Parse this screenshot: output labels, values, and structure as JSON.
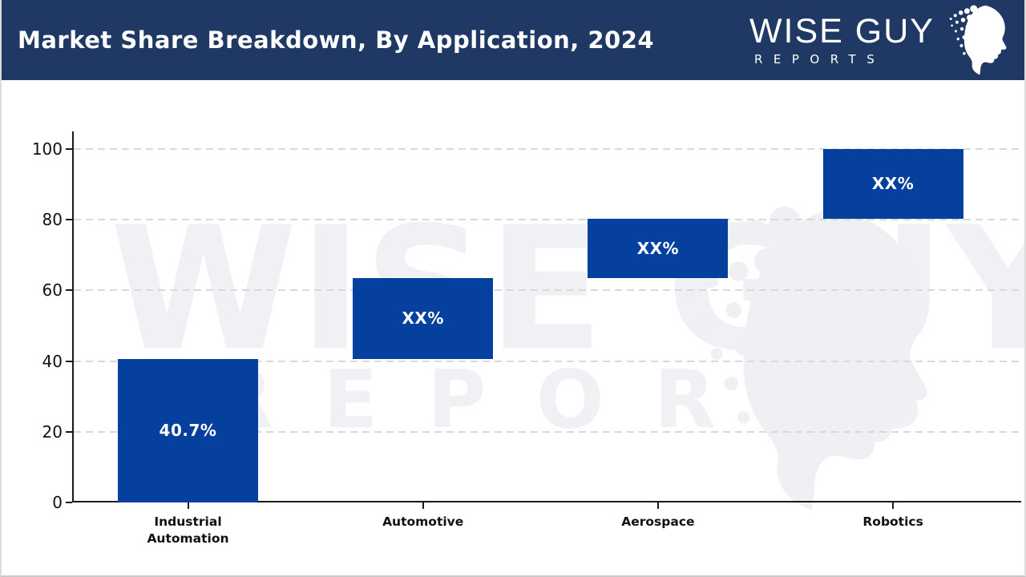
{
  "header": {
    "title": "Market Share Breakdown, By Application, 2024",
    "logo": {
      "wordmark": "WISE GUY",
      "subtext": "REPORTS"
    }
  },
  "watermark": {
    "wordmark": "WISE GUY",
    "subtext": "REPORTS"
  },
  "colors": {
    "header_bg": "#1f3864",
    "bar_fill": "#05409e",
    "bar_label_text": "#ffffff",
    "gridline": "#d9d9d9",
    "axis": "#1a1a1a",
    "watermark_text": "#f0f1f4",
    "watermark_head": "#eef0f3",
    "title_text": "#ffffff"
  },
  "chart_data": {
    "type": "bar",
    "subtype": "floating-breakdown-waterfall",
    "title": "Market Share Breakdown, By Application, 2024",
    "categories": [
      "Industrial\nAutomation",
      "Automotive",
      "Aerospace",
      "Robotics"
    ],
    "segments": [
      {
        "category": "Industrial Automation",
        "start": 0,
        "end": 40.7,
        "label": "40.7%"
      },
      {
        "category": "Automotive",
        "start": 40.7,
        "end": 63.5,
        "label": "XX%"
      },
      {
        "category": "Aerospace",
        "start": 63.5,
        "end": 80.3,
        "label": "XX%"
      },
      {
        "category": "Robotics",
        "start": 80.3,
        "end": 100,
        "label": "XX%"
      }
    ],
    "xlabel": "",
    "ylabel": "",
    "ylim": [
      0,
      100
    ],
    "yticks": [
      0,
      20,
      40,
      60,
      80,
      100
    ],
    "grid": "dashed-horizontal",
    "legend": "none"
  }
}
